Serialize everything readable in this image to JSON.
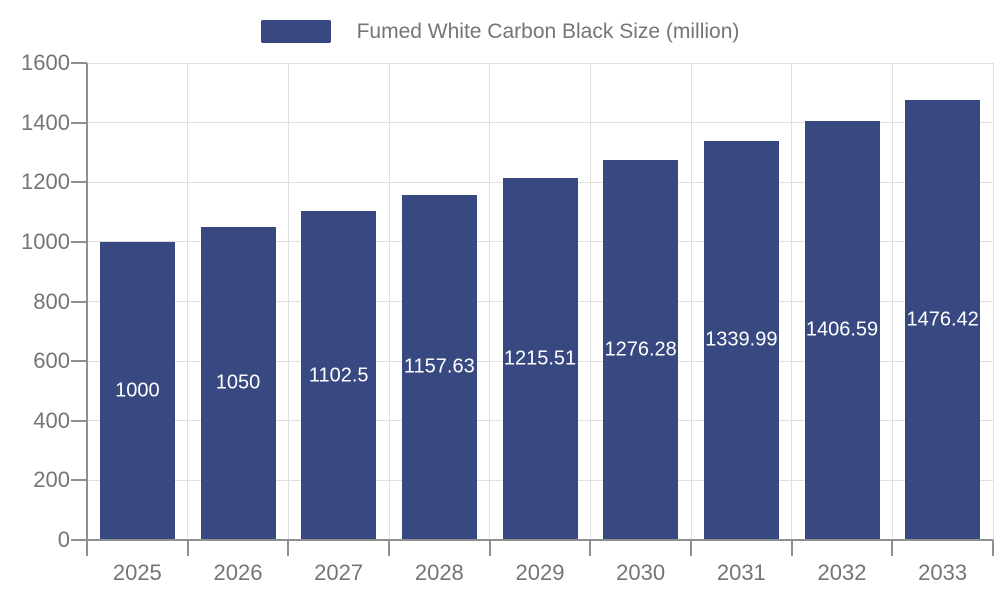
{
  "legend": {
    "label": "Fumed White Carbon Black Size (million)"
  },
  "chart_data": {
    "type": "bar",
    "title": "",
    "legend": "Fumed White Carbon Black Size (million)",
    "legend_position": "top-center",
    "categories": [
      "2025",
      "2026",
      "2027",
      "2028",
      "2029",
      "2030",
      "2031",
      "2032",
      "2033"
    ],
    "series": [
      {
        "name": "Fumed White Carbon Black Size (million)",
        "values": [
          1000,
          1050,
          1102.5,
          1157.63,
          1215.51,
          1276.28,
          1339.99,
          1406.59,
          1476.42
        ]
      }
    ],
    "value_labels": [
      "1000",
      "1050",
      "1102.5",
      "1157.63",
      "1215.51",
      "1276.28",
      "1339.99",
      "1406.59",
      "1476.42"
    ],
    "xlabel": "",
    "ylabel": "",
    "ylim": [
      0,
      1600
    ],
    "ytick_interval": 200,
    "yticks": [
      "0",
      "200",
      "400",
      "600",
      "800",
      "1000",
      "1200",
      "1400",
      "1600"
    ],
    "grid": true,
    "colors": {
      "bar": "#384880",
      "grid": "#e0e0e0",
      "axis": "#8f8f8f",
      "tick_label": "#757575",
      "value_label": "#ffffff",
      "background": "#ffffff"
    }
  }
}
